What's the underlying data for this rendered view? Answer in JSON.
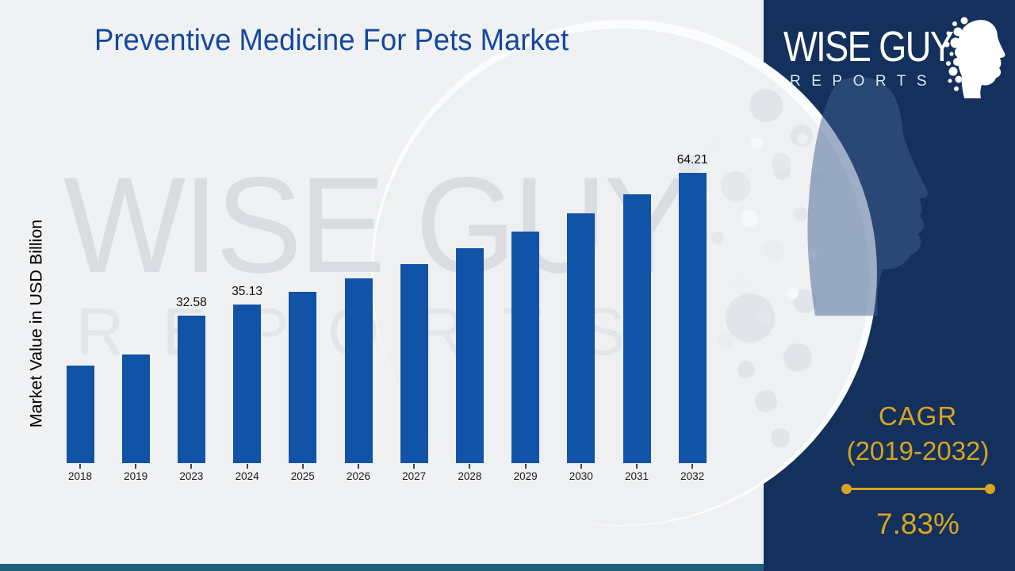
{
  "title": "Preventive Medicine For Pets Market",
  "logo": {
    "line1": "WISE GUY",
    "line2": "REPORTS"
  },
  "watermark": {
    "line1": "WISE GUY",
    "line2": "REPORTS"
  },
  "side_panel": {
    "cagr_label": "CAGR",
    "cagr_period": "(2019-2032)",
    "cagr_value": "7.83%"
  },
  "colors": {
    "navy_panel": "#14305c",
    "bar_blue": "#1053a7",
    "gold_accent": "#d8a420",
    "teal_bottom_bar": "#205f7e",
    "title_blue": "#15489e",
    "background": "#f0f1f3"
  },
  "chart_data": {
    "type": "bar",
    "title": "Preventive Medicine For Pets Market",
    "xlabel": "",
    "ylabel": "Market Value in USD Billion",
    "categories": [
      "2018",
      "2019",
      "2023",
      "2024",
      "2025",
      "2026",
      "2027",
      "2028",
      "2029",
      "2030",
      "2031",
      "2032"
    ],
    "values": [
      21.5,
      24.1,
      32.58,
      35.13,
      37.88,
      40.85,
      44.05,
      47.5,
      51.22,
      55.23,
      59.55,
      64.21
    ],
    "bar_labels": [
      "",
      "",
      "32.58",
      "35.13",
      "",
      "",
      "",
      "",
      "",
      "",
      "",
      "64.21"
    ],
    "bar_color": "#1053a7",
    "ylim": [
      0,
      70
    ],
    "grid": false,
    "legend": "none"
  }
}
